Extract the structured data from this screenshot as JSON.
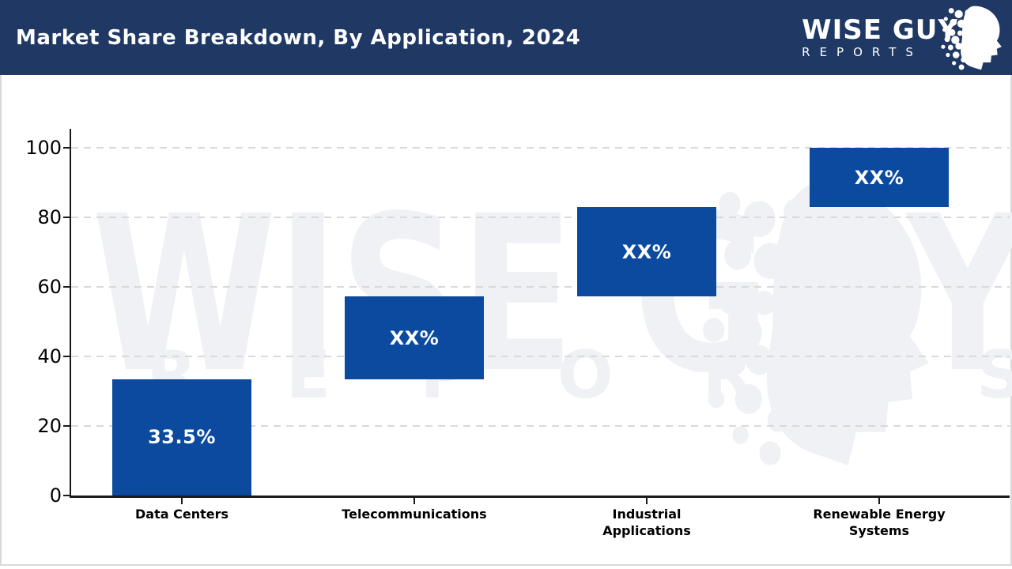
{
  "header": {
    "title": "Market Share Breakdown, By Application, 2024",
    "logo": {
      "line1": "WISE GUY",
      "line2": "REPORTS"
    }
  },
  "watermark": {
    "line1": "WISE GUY",
    "line2": "REPORTS"
  },
  "chart_data": {
    "type": "bar",
    "subtype": "waterfall",
    "title": "Market Share Breakdown, By Application, 2024",
    "categories": [
      "Data Centers",
      "Telecommunications",
      "Industrial Applications",
      "Renewable Energy Systems"
    ],
    "category_lines": [
      [
        "Data Centers"
      ],
      [
        "Telecommunications"
      ],
      [
        "Industrial",
        "Applications"
      ],
      [
        "Renewable Energy",
        "Systems"
      ]
    ],
    "segments": [
      {
        "start": 0,
        "end": 33.5,
        "label": "33.5%"
      },
      {
        "start": 33.5,
        "end": 57.2,
        "label": "XX%"
      },
      {
        "start": 57.2,
        "end": 83,
        "label": "XX%"
      },
      {
        "start": 83,
        "end": 100,
        "label": "XX%"
      }
    ],
    "y_ticks": [
      0,
      20,
      40,
      60,
      80,
      100
    ],
    "ylim": [
      0,
      105.5
    ],
    "grid": "dashed-horizontal",
    "legend": "none",
    "bar_color": "#0b4a9e",
    "bar_label_color": "#ffffff"
  },
  "colors": {
    "header_bg": "#1f3864",
    "bar_blue": "#0b4a9e",
    "watermark": "#f0f1f4",
    "gridline": "#d9d9d9",
    "axis": "#1a1a1a"
  }
}
